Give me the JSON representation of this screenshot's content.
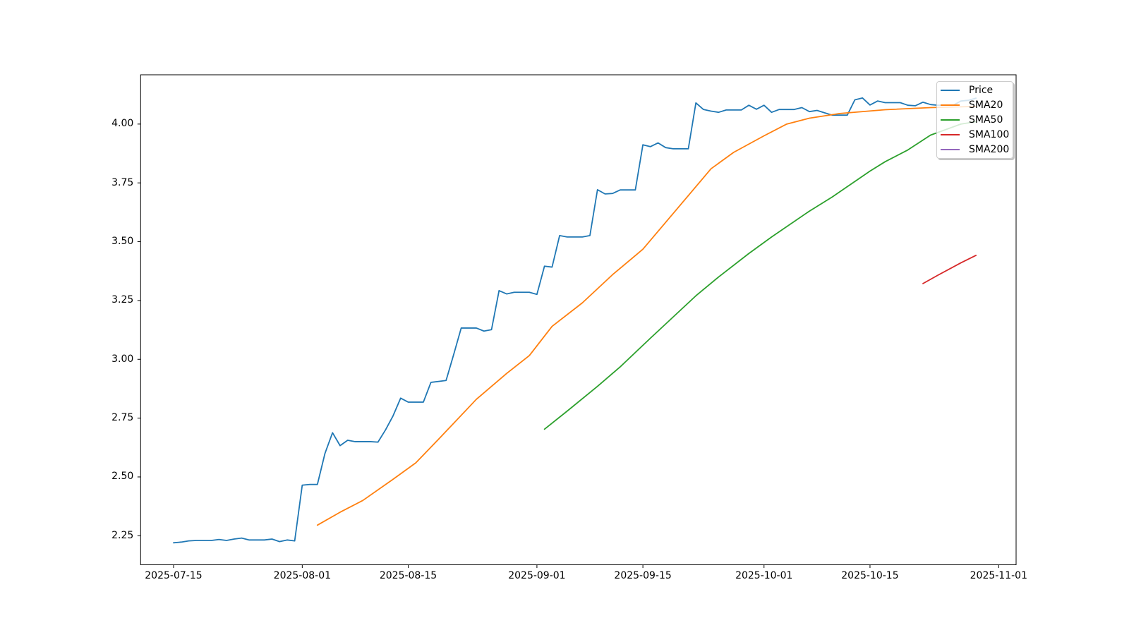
{
  "figure": {
    "background": "#ffffff"
  },
  "chart_data": {
    "type": "line",
    "title": "",
    "xlabel": "",
    "ylabel": "",
    "grid": false,
    "x_epoch": "2025-07-15",
    "x_domain_days": [
      -4.35,
      111.3
    ],
    "y_domain": [
      2.1265,
      4.2095
    ],
    "x_tick_labels": [
      "2025-07-15",
      "2025-08-01",
      "2025-08-15",
      "2025-09-01",
      "2025-09-15",
      "2025-10-01",
      "2025-10-15",
      "2025-11-01"
    ],
    "y_tick_labels": [
      "2.25",
      "2.50",
      "2.75",
      "3.00",
      "3.25",
      "3.50",
      "3.75",
      "4.00"
    ],
    "legend": {
      "position": "upper right",
      "frame_alpha": 0.8
    },
    "series": [
      {
        "name": "Price",
        "color": "#1f77b4",
        "points": [
          [
            "2025-07-15",
            2.22
          ],
          [
            "2025-07-16",
            2.223
          ],
          [
            "2025-07-17",
            2.228
          ],
          [
            "2025-07-18",
            2.23
          ],
          [
            "2025-07-19",
            2.23
          ],
          [
            "2025-07-20",
            2.23
          ],
          [
            "2025-07-21",
            2.234
          ],
          [
            "2025-07-22",
            2.23
          ],
          [
            "2025-07-23",
            2.236
          ],
          [
            "2025-07-24",
            2.24
          ],
          [
            "2025-07-25",
            2.232
          ],
          [
            "2025-07-26",
            2.232
          ],
          [
            "2025-07-27",
            2.232
          ],
          [
            "2025-07-28",
            2.236
          ],
          [
            "2025-07-29",
            2.225
          ],
          [
            "2025-07-30",
            2.232
          ],
          [
            "2025-07-31",
            2.228
          ],
          [
            "2025-08-01",
            2.465
          ],
          [
            "2025-08-02",
            2.468
          ],
          [
            "2025-08-03",
            2.468
          ],
          [
            "2025-08-04",
            2.6
          ],
          [
            "2025-08-05",
            2.688
          ],
          [
            "2025-08-06",
            2.633
          ],
          [
            "2025-08-07",
            2.656
          ],
          [
            "2025-08-08",
            2.65
          ],
          [
            "2025-08-09",
            2.65
          ],
          [
            "2025-08-10",
            2.65
          ],
          [
            "2025-08-11",
            2.648
          ],
          [
            "2025-08-12",
            2.7
          ],
          [
            "2025-08-13",
            2.76
          ],
          [
            "2025-08-14",
            2.835
          ],
          [
            "2025-08-15",
            2.818
          ],
          [
            "2025-08-16",
            2.818
          ],
          [
            "2025-08-17",
            2.818
          ],
          [
            "2025-08-18",
            2.902
          ],
          [
            "2025-08-19",
            2.906
          ],
          [
            "2025-08-20",
            2.91
          ],
          [
            "2025-08-21",
            3.02
          ],
          [
            "2025-08-22",
            3.133
          ],
          [
            "2025-08-23",
            3.133
          ],
          [
            "2025-08-24",
            3.133
          ],
          [
            "2025-08-25",
            3.12
          ],
          [
            "2025-08-26",
            3.126
          ],
          [
            "2025-08-27",
            3.292
          ],
          [
            "2025-08-28",
            3.278
          ],
          [
            "2025-08-29",
            3.285
          ],
          [
            "2025-08-30",
            3.285
          ],
          [
            "2025-08-31",
            3.285
          ],
          [
            "2025-09-01",
            3.276
          ],
          [
            "2025-09-02",
            3.396
          ],
          [
            "2025-09-03",
            3.392
          ],
          [
            "2025-09-04",
            3.526
          ],
          [
            "2025-09-05",
            3.52
          ],
          [
            "2025-09-06",
            3.52
          ],
          [
            "2025-09-07",
            3.52
          ],
          [
            "2025-09-08",
            3.526
          ],
          [
            "2025-09-09",
            3.721
          ],
          [
            "2025-09-10",
            3.703
          ],
          [
            "2025-09-11",
            3.705
          ],
          [
            "2025-09-12",
            3.72
          ],
          [
            "2025-09-13",
            3.72
          ],
          [
            "2025-09-14",
            3.72
          ],
          [
            "2025-09-15",
            3.912
          ],
          [
            "2025-09-16",
            3.904
          ],
          [
            "2025-09-17",
            3.92
          ],
          [
            "2025-09-18",
            3.9
          ],
          [
            "2025-09-19",
            3.895
          ],
          [
            "2025-09-20",
            3.895
          ],
          [
            "2025-09-21",
            3.895
          ],
          [
            "2025-09-22",
            4.09
          ],
          [
            "2025-09-23",
            4.062
          ],
          [
            "2025-09-24",
            4.055
          ],
          [
            "2025-09-25",
            4.05
          ],
          [
            "2025-09-26",
            4.06
          ],
          [
            "2025-09-27",
            4.06
          ],
          [
            "2025-09-28",
            4.06
          ],
          [
            "2025-09-29",
            4.08
          ],
          [
            "2025-09-30",
            4.063
          ],
          [
            "2025-10-01",
            4.08
          ],
          [
            "2025-10-02",
            4.05
          ],
          [
            "2025-10-03",
            4.062
          ],
          [
            "2025-10-04",
            4.062
          ],
          [
            "2025-10-05",
            4.062
          ],
          [
            "2025-10-06",
            4.07
          ],
          [
            "2025-10-07",
            4.053
          ],
          [
            "2025-10-08",
            4.058
          ],
          [
            "2025-10-09",
            4.048
          ],
          [
            "2025-10-10",
            4.038
          ],
          [
            "2025-10-11",
            4.038
          ],
          [
            "2025-10-12",
            4.038
          ],
          [
            "2025-10-13",
            4.103
          ],
          [
            "2025-10-14",
            4.111
          ],
          [
            "2025-10-15",
            4.081
          ],
          [
            "2025-10-16",
            4.098
          ],
          [
            "2025-10-17",
            4.091
          ],
          [
            "2025-10-18",
            4.091
          ],
          [
            "2025-10-19",
            4.091
          ],
          [
            "2025-10-20",
            4.08
          ],
          [
            "2025-10-21",
            4.078
          ],
          [
            "2025-10-22",
            4.093
          ],
          [
            "2025-10-23",
            4.083
          ],
          [
            "2025-10-24",
            4.08
          ],
          [
            "2025-10-25",
            4.08
          ],
          [
            "2025-10-26",
            4.08
          ],
          [
            "2025-10-27",
            4.098
          ],
          [
            "2025-10-28",
            4.101
          ],
          [
            "2025-10-29",
            4.11
          ]
        ]
      },
      {
        "name": "SMA20",
        "color": "#ff7f0e",
        "points": [
          [
            "2025-08-03",
            2.295
          ],
          [
            "2025-08-06",
            2.35
          ],
          [
            "2025-08-09",
            2.4
          ],
          [
            "2025-08-13",
            2.49
          ],
          [
            "2025-08-16",
            2.56
          ],
          [
            "2025-08-19",
            2.66
          ],
          [
            "2025-08-24",
            2.83
          ],
          [
            "2025-08-28",
            2.94
          ],
          [
            "2025-08-31",
            3.016
          ],
          [
            "2025-09-03",
            3.14
          ],
          [
            "2025-09-07",
            3.24
          ],
          [
            "2025-09-11",
            3.36
          ],
          [
            "2025-09-15",
            3.468
          ],
          [
            "2025-09-19",
            3.62
          ],
          [
            "2025-09-24",
            3.81
          ],
          [
            "2025-09-27",
            3.88
          ],
          [
            "2025-10-01",
            3.95
          ],
          [
            "2025-10-04",
            4.0
          ],
          [
            "2025-10-07",
            4.025
          ],
          [
            "2025-10-11",
            4.045
          ],
          [
            "2025-10-17",
            4.061
          ],
          [
            "2025-10-23",
            4.07
          ],
          [
            "2025-10-29",
            4.075
          ]
        ]
      },
      {
        "name": "SMA50",
        "color": "#2ca02c",
        "points": [
          [
            "2025-09-02",
            2.703
          ],
          [
            "2025-09-05",
            2.78
          ],
          [
            "2025-09-09",
            2.885
          ],
          [
            "2025-09-12",
            2.968
          ],
          [
            "2025-09-16",
            3.09
          ],
          [
            "2025-09-19",
            3.18
          ],
          [
            "2025-09-22",
            3.27
          ],
          [
            "2025-09-25",
            3.35
          ],
          [
            "2025-09-29",
            3.45
          ],
          [
            "2025-10-02",
            3.52
          ],
          [
            "2025-10-07",
            3.63
          ],
          [
            "2025-10-10",
            3.69
          ],
          [
            "2025-10-15",
            3.8
          ],
          [
            "2025-10-17",
            3.84
          ],
          [
            "2025-10-20",
            3.89
          ],
          [
            "2025-10-23",
            3.953
          ],
          [
            "2025-10-27",
            4.0
          ],
          [
            "2025-10-29",
            4.01
          ]
        ]
      },
      {
        "name": "SMA100",
        "color": "#d62728",
        "points": [
          [
            "2025-10-22",
            3.322
          ],
          [
            "2025-10-24",
            3.358
          ],
          [
            "2025-10-27",
            3.41
          ],
          [
            "2025-10-29",
            3.442
          ]
        ]
      },
      {
        "name": "SMA200",
        "color": "#9467bd",
        "points": []
      }
    ]
  }
}
